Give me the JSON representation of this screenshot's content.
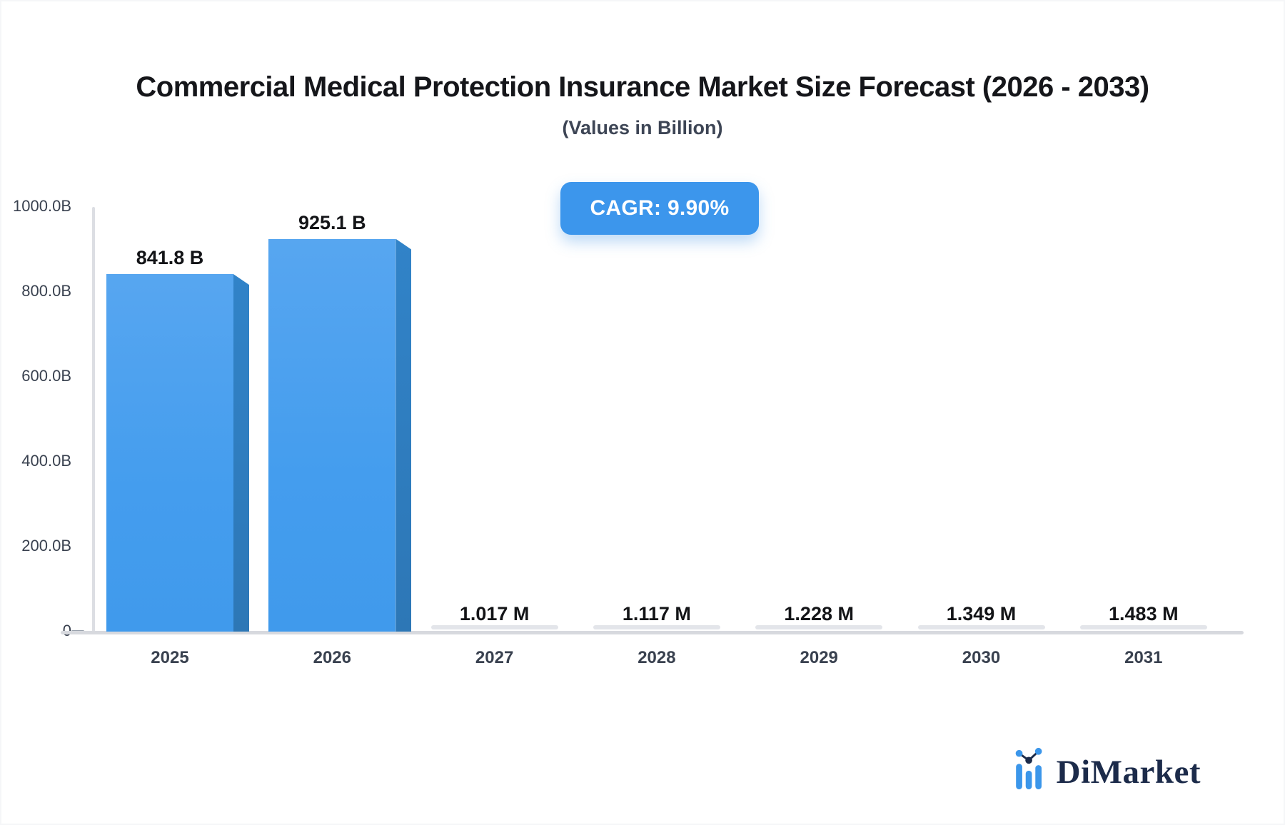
{
  "page": {
    "title": "Commercial Medical Protection Insurance Market Size Forecast (2026 - 2033)",
    "subtitle": "(Values in Billion)",
    "cagr_badge": "CAGR: 9.90%"
  },
  "colors": {
    "bar_face": "#4da2ee",
    "bar_side": "#2e7cc0",
    "badge_bg": "#3c96ec",
    "tiny_bar": "#e3e5ea",
    "axis_line": "#dcdee3",
    "title_text": "#15161a",
    "axis_text": "#39414f",
    "logo_navy": "#1c2b4a",
    "logo_blue": "#3b96ea"
  },
  "chart_data": {
    "type": "bar",
    "title": "Commercial Medical Protection Insurance Market Size Forecast (2026 - 2033)",
    "subtitle": "(Values in Billion)",
    "cagr": "9.90%",
    "ylabel_unit": "Billion",
    "ylim": [
      0,
      1000
    ],
    "grid": "off",
    "legend": "none",
    "yticks": [
      {
        "value": 0,
        "label": "0"
      },
      {
        "value": 200,
        "label": "200.0B"
      },
      {
        "value": 400,
        "label": "400.0B"
      },
      {
        "value": 600,
        "label": "600.0B"
      },
      {
        "value": 800,
        "label": "800.0B"
      },
      {
        "value": 1000,
        "label": "1000.0B"
      }
    ],
    "categories": [
      "2025",
      "2026",
      "2027",
      "2028",
      "2029",
      "2030",
      "2031"
    ],
    "points": [
      {
        "year": "2025",
        "value": 841.8,
        "unit": "B",
        "label": "841.8 B"
      },
      {
        "year": "2026",
        "value": 925.1,
        "unit": "B",
        "label": "925.1 B"
      },
      {
        "year": "2027",
        "value": 1.017,
        "unit": "M",
        "label": "1.017 M"
      },
      {
        "year": "2028",
        "value": 1.117,
        "unit": "M",
        "label": "1.117 M"
      },
      {
        "year": "2029",
        "value": 1.228,
        "unit": "M",
        "label": "1.228 M"
      },
      {
        "year": "2030",
        "value": 1.349,
        "unit": "M",
        "label": "1.349 M"
      },
      {
        "year": "2031",
        "value": 1.483,
        "unit": "M",
        "label": "1.483 M"
      }
    ]
  },
  "logo": {
    "name": "DiMarket",
    "icon": "bar-chart-logo-icon"
  }
}
